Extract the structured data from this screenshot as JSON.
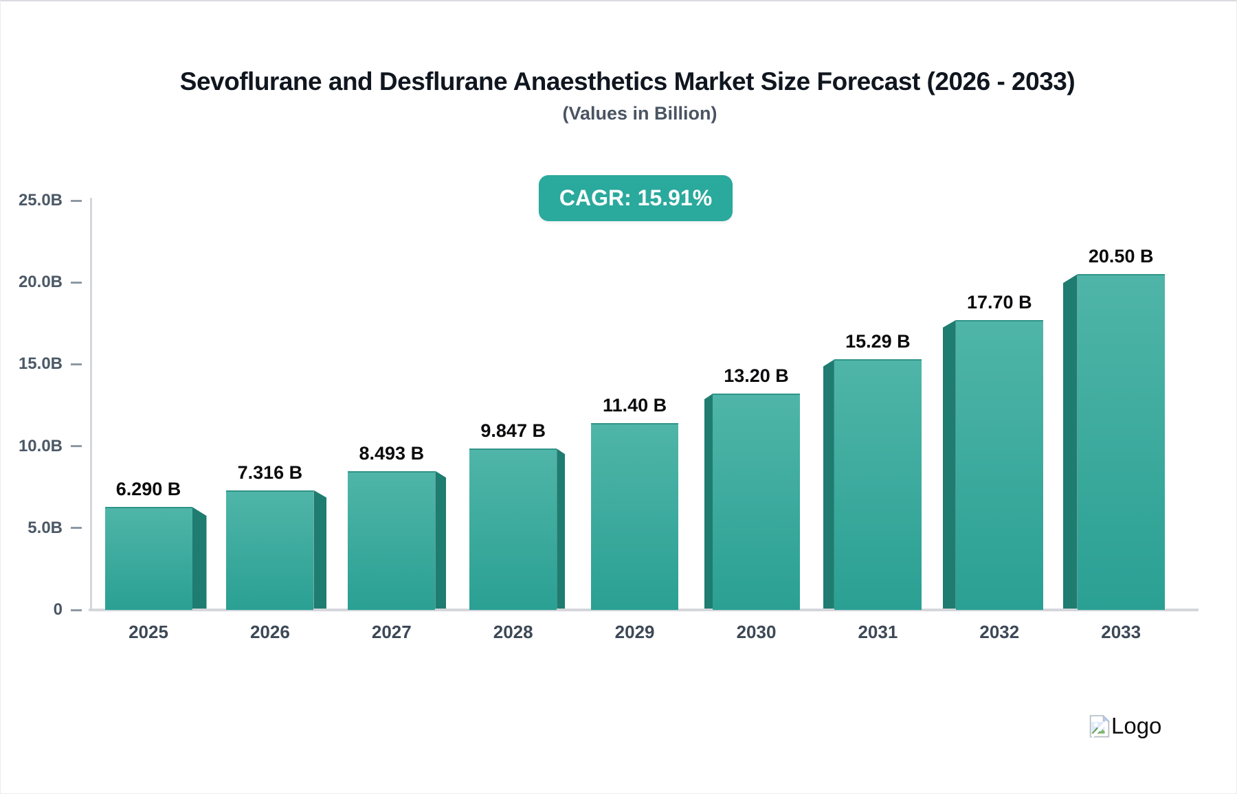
{
  "page": {
    "title": "Sevoflurane and Desflurane Anaesthetics Market Size Forecast (2026 - 2033)",
    "subtitle": "(Values in Billion)",
    "cagr_badge": "CAGR: 15.91%"
  },
  "chart_data": {
    "type": "bar",
    "title": "Sevoflurane and Desflurane Anaesthetics Market Size Forecast (2026 - 2033)",
    "subtitle": "(Values in Billion)",
    "annotation": "CAGR: 15.91%",
    "categories": [
      "2025",
      "2026",
      "2027",
      "2028",
      "2029",
      "2030",
      "2031",
      "2032",
      "2033"
    ],
    "values": [
      6.29,
      7.316,
      8.493,
      9.847,
      11.4,
      13.2,
      15.29,
      17.7,
      20.5
    ],
    "value_labels": [
      "6.290 B",
      "7.316 B",
      "8.493 B",
      "9.847 B",
      "11.40 B",
      "13.20 B",
      "15.29 B",
      "17.70 B",
      "20.50 B"
    ],
    "ylabel": "",
    "xlabel": "",
    "y_ticks": [
      "0",
      "5.0B",
      "10.0B",
      "15.0B",
      "20.0B",
      "25.0B"
    ],
    "ylim": [
      0,
      25
    ],
    "unit": "Billion",
    "grid": false,
    "legend": "none",
    "colors": {
      "bar_face_top": "#4fb5a8",
      "bar_face_bottom": "#2aa093",
      "bar_side": "#1e7c70",
      "badge_background": "#2aa99d",
      "axis_line": "#d4d6db",
      "tick_mark": "#8d98a4",
      "tick_text": "#4b5866",
      "category_text": "#3d4856",
      "value_text": "#0b0b0d"
    }
  },
  "logo": {
    "alt_text": "Logo"
  }
}
